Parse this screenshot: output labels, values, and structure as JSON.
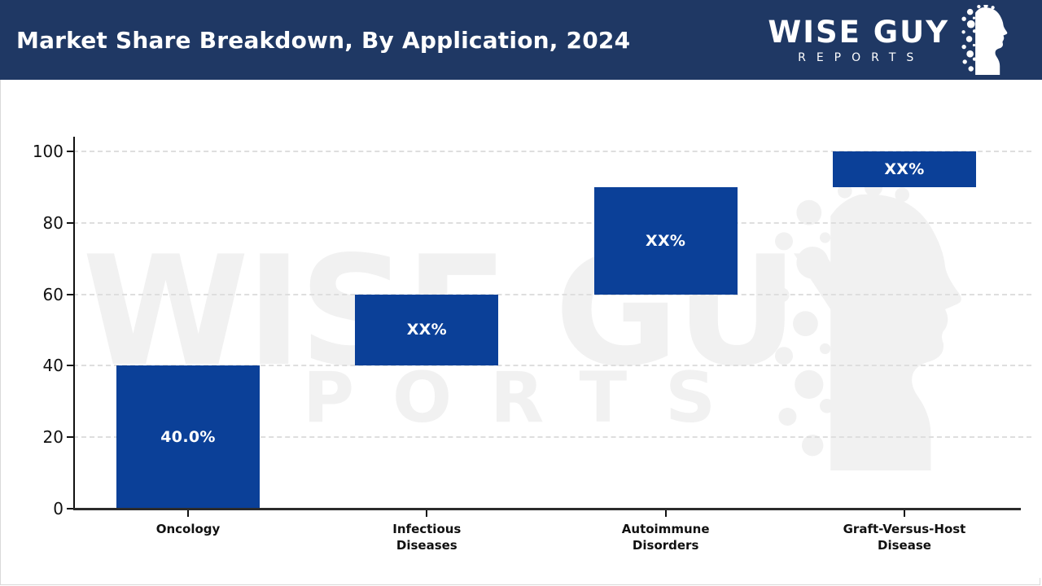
{
  "header": {
    "title": "Market Share Breakdown, By Application, 2024",
    "logo": {
      "line1": "WISE GUY",
      "line2": "REPORTS"
    }
  },
  "watermark": {
    "line1": "WISE GUY.",
    "line2": "REPORTS"
  },
  "chart_data": {
    "type": "bar",
    "subtype": "waterfall",
    "title": "Market Share Breakdown, By Application, 2024",
    "categories": [
      "Oncology",
      "Infectious\nDiseases",
      "Autoimmune\nDisorders",
      "Graft-Versus-Host\nDisease"
    ],
    "segments": [
      {
        "category": "Oncology",
        "start": 0,
        "end": 40,
        "label": "40.0%"
      },
      {
        "category": "Infectious Diseases",
        "start": 40,
        "end": 60,
        "label": "XX%"
      },
      {
        "category": "Autoimmune Disorders",
        "start": 60,
        "end": 90,
        "label": "XX%"
      },
      {
        "category": "Graft-Versus-Host Disease",
        "start": 90,
        "end": 100,
        "label": "XX%"
      }
    ],
    "yticks": [
      0,
      20,
      40,
      60,
      80,
      100
    ],
    "ylim": [
      0,
      105
    ],
    "xlabel": "",
    "ylabel": "",
    "grid": "horizontal-dashed",
    "legend": "none"
  },
  "colors": {
    "header_bg": "#1f3864",
    "footer_hairline": "#d9d9d9",
    "bar": "#0b4098",
    "bar_label": "#ffffff",
    "grid": "#dedede",
    "axis": "#111111",
    "watermark": "#f1f1f1"
  }
}
